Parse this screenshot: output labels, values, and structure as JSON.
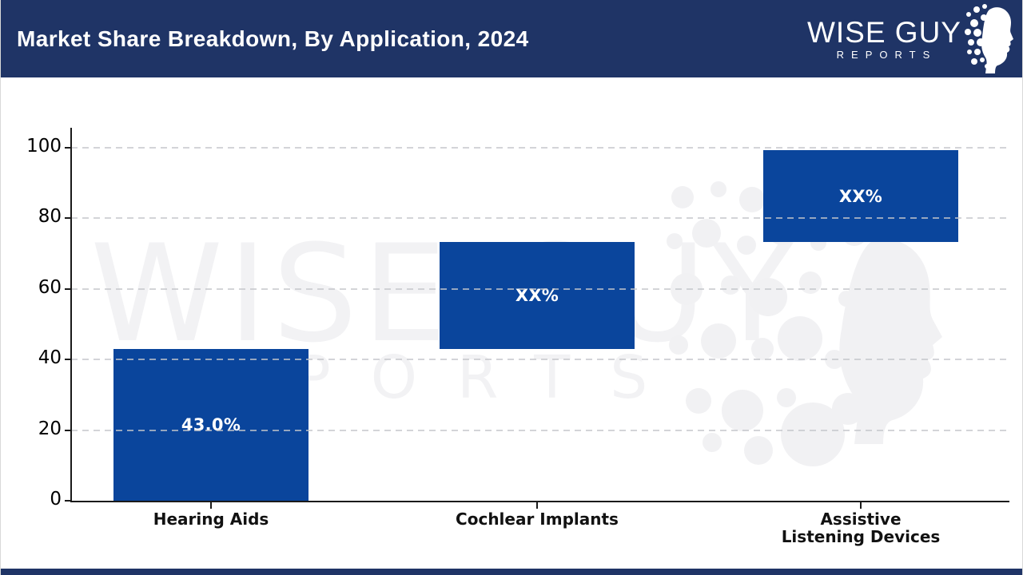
{
  "header": {
    "title": "Market Share Breakdown, By Application, 2024",
    "bg_color": "#1f3466",
    "logo": {
      "word": "WISE GUY",
      "sub": "REPORTS",
      "face_icon": "dotted-head-profile"
    }
  },
  "chart_data": {
    "type": "bar",
    "subtype": "floating-segment-waterfall",
    "title": "Market Share Breakdown, By Application, 2024",
    "categories": [
      "Hearing Aids",
      "Cochlear Implants",
      "Assistive Listening Devices"
    ],
    "category_label_lines": [
      [
        "Hearing Aids"
      ],
      [
        "Cochlear Implants"
      ],
      [
        "Assistive",
        "Listening Devices"
      ]
    ],
    "segments": [
      {
        "category": "Hearing Aids",
        "start": 0,
        "end": 43.0,
        "label": "43.0%"
      },
      {
        "category": "Cochlear Implants",
        "start": 43.0,
        "end": 73.3,
        "label": "XX%"
      },
      {
        "category": "Assistive Listening Devices",
        "start": 73.3,
        "end": 99.3,
        "label": "XX%"
      }
    ],
    "yticks": [
      0,
      20,
      40,
      60,
      80,
      100
    ],
    "ylim": [
      0,
      105.6
    ],
    "xlabel": "",
    "ylabel": "",
    "grid": "dashed-horizontal",
    "legend": "none",
    "bar_color": "#0a459c",
    "bar_label_color": "#ffffff",
    "axis_color": "#1a1a1a"
  },
  "watermark": {
    "word": "WISE GUY",
    "sub": "REPORTS"
  }
}
